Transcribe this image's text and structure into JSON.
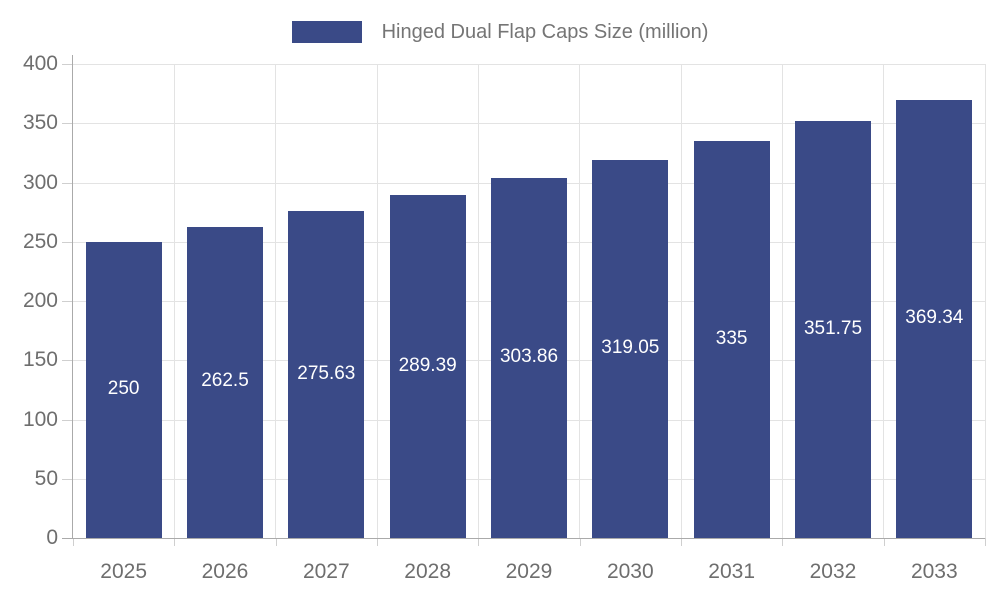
{
  "legend": {
    "label": "Hinged Dual Flap Caps Size (million)"
  },
  "colors": {
    "bar": "#3A4A87",
    "grid": "#E3E3E3",
    "axis_line": "#AAAAAA",
    "tick": "#CFCFCF",
    "axis_text": "#6E6E6E",
    "legend_text": "#757575",
    "bar_label_text": "#FFFFFF",
    "background": "#FFFFFF"
  },
  "chart_data": {
    "type": "bar",
    "title": "Hinged Dual Flap Caps Size (million)",
    "categories": [
      "2025",
      "2026",
      "2027",
      "2028",
      "2029",
      "2030",
      "2031",
      "2032",
      "2033"
    ],
    "values": [
      250,
      262.5,
      275.63,
      289.39,
      303.86,
      319.05,
      335,
      351.75,
      369.34
    ],
    "value_labels": [
      "250",
      "262.5",
      "275.63",
      "289.39",
      "303.86",
      "319.05",
      "335",
      "351.75",
      "369.34"
    ],
    "xlabel": "",
    "ylabel": "",
    "ylim": [
      0,
      400
    ],
    "y_ticks": [
      0,
      50,
      100,
      150,
      200,
      250,
      300,
      350,
      400
    ],
    "grid": true,
    "legend_position": "top-center",
    "legend_entries": [
      "Hinged Dual Flap Caps Size (million)"
    ],
    "bar_color": "#3A4A87"
  }
}
